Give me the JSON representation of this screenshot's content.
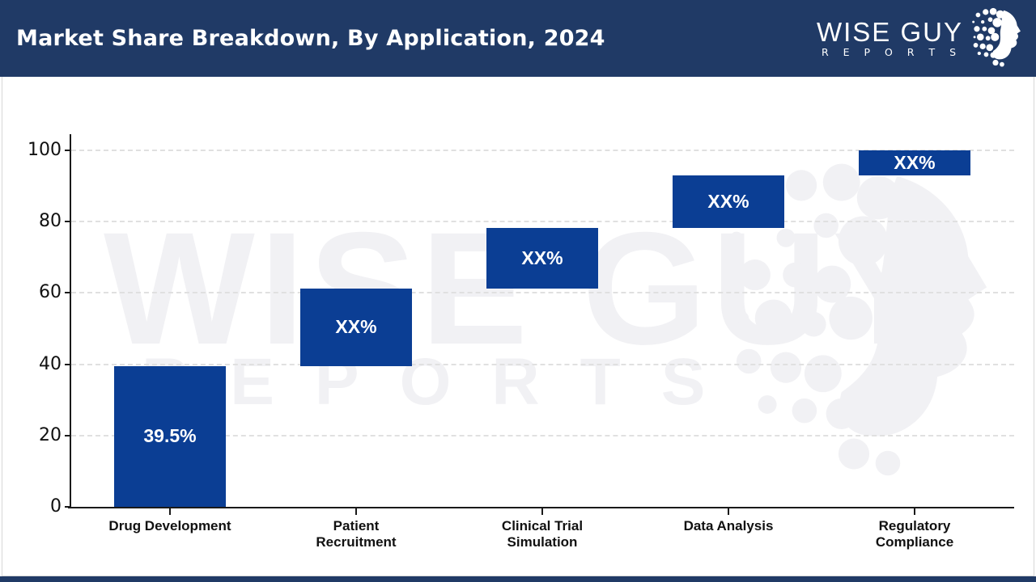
{
  "header": {
    "title": "Market Share Breakdown, By Application, 2024",
    "bg_color": "#203a66",
    "logo": {
      "line1": "WISE GUY",
      "line2": "R E P O R T S"
    }
  },
  "watermark": {
    "line1": "WISE GUY",
    "line2": "REPORTS"
  },
  "chart_data": {
    "type": "bar",
    "subtype": "waterfall",
    "title": "Market Share Breakdown, By Application, 2024",
    "categories": [
      "Drug Development",
      "Patient Recruitment",
      "Clinical Trial Simulation",
      "Data Analysis",
      "Regulatory Compliance"
    ],
    "category_label_lines": [
      [
        "Drug Development"
      ],
      [
        "Patient",
        "Recruitment"
      ],
      [
        "Clinical Trial",
        "Simulation"
      ],
      [
        "Data Analysis"
      ],
      [
        "Regulatory",
        "Compliance"
      ]
    ],
    "segments": [
      {
        "category": "Drug Development",
        "start": 0,
        "end": 39.5,
        "label": "39.5%"
      },
      {
        "category": "Patient Recruitment",
        "start": 39.5,
        "end": 61.3,
        "label": "XX%"
      },
      {
        "category": "Clinical Trial Simulation",
        "start": 61.3,
        "end": 78.3,
        "label": "XX%"
      },
      {
        "category": "Data Analysis",
        "start": 78.3,
        "end": 93,
        "label": "XX%"
      },
      {
        "category": "Regulatory Compliance",
        "start": 93,
        "end": 100,
        "label": "XX%"
      }
    ],
    "xlabel": "",
    "ylabel": "",
    "ylim": [
      0,
      100
    ],
    "yticks": [
      0,
      20,
      40,
      60,
      80,
      100
    ],
    "grid": "horizontal-dashed",
    "legend": "none",
    "bar_color": "#0b3e94",
    "bar_label_color": "#ffffff"
  }
}
